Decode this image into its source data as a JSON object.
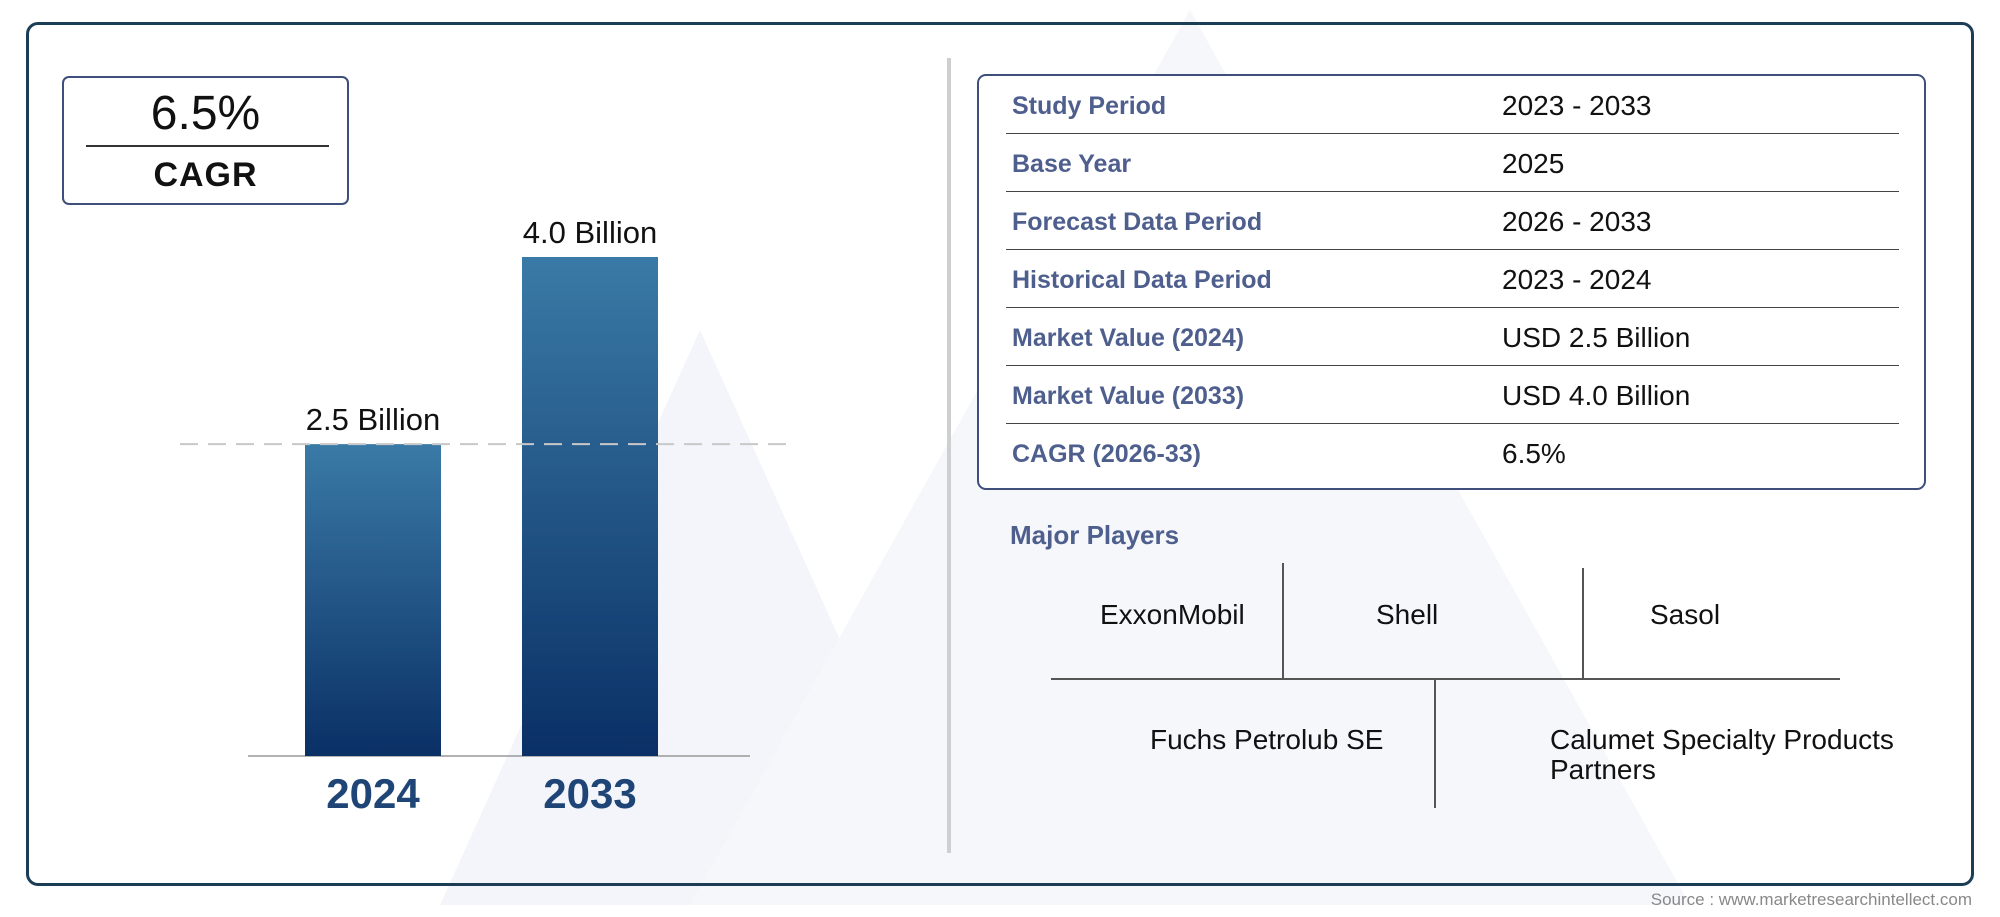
{
  "cagr_badge": {
    "value": "6.5%",
    "label": "CAGR"
  },
  "chart_data": {
    "type": "bar",
    "categories": [
      "2024",
      "2033"
    ],
    "values": [
      2.5,
      4.0
    ],
    "data_labels": [
      "2.5 Billion",
      "4.0 Billion"
    ],
    "title": "",
    "xlabel": "",
    "ylabel": "",
    "grid": false,
    "reference_line": {
      "value": 2.5,
      "style": "dashed"
    }
  },
  "info_table": {
    "rows": [
      {
        "label": "Study Period",
        "value": "2023 - 2033"
      },
      {
        "label": "Base Year",
        "value": "2025"
      },
      {
        "label": "Forecast Data Period",
        "value": "2026 - 2033"
      },
      {
        "label": "Historical Data Period",
        "value": "2023 - 2024"
      },
      {
        "label": "Market Value (2024)",
        "value": "USD 2.5 Billion"
      },
      {
        "label": "Market Value (2033)",
        "value": "USD 4.0 Billion"
      },
      {
        "label": "CAGR (2026-33)",
        "value": "6.5%"
      }
    ]
  },
  "players": {
    "title": "Major Players",
    "names": [
      "ExxonMobil",
      "Shell",
      "Sasol",
      "Fuchs Petrolub SE",
      "Calumet Specialty Products Partners"
    ]
  },
  "source": "Source : www.marketresearchintellect.com",
  "colors": {
    "bar_top": "#3a7aa6",
    "bar_bottom": "#0a3066",
    "frame": "#1c3d56",
    "label_blue": "#4e5f8e",
    "year_label": "#1f4577"
  }
}
